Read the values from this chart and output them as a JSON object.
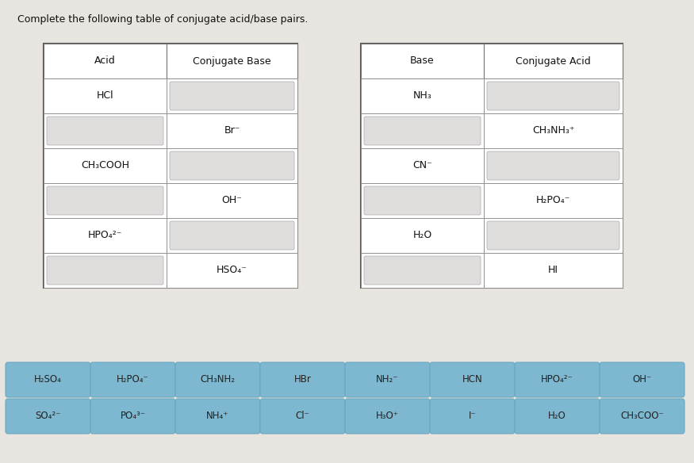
{
  "title": "Complete the following table of conjugate acid/base pairs.",
  "page_bg": "#e8e4df",
  "table1": {
    "headers": [
      "Acid",
      "Conjugate Base"
    ],
    "rows": [
      [
        "HCl",
        ""
      ],
      [
        "",
        "Br⁻"
      ],
      [
        "CH₃COOH",
        ""
      ],
      [
        "",
        "OH⁻"
      ],
      [
        "HPO₄²⁻",
        ""
      ],
      [
        "",
        "HSO₄⁻"
      ]
    ]
  },
  "table2": {
    "headers": [
      "Base",
      "Conjugate Acid"
    ],
    "rows": [
      [
        "NH₃",
        ""
      ],
      [
        "",
        "CH₃NH₃⁺"
      ],
      [
        "CN⁻",
        ""
      ],
      [
        "",
        "H₂PO₄⁻"
      ],
      [
        "H₂O",
        ""
      ],
      [
        "",
        "HI"
      ]
    ]
  },
  "answer_tiles_row1": [
    "H₂SO₄",
    "H₂PO₄⁻",
    "CH₃NH₂",
    "HBr",
    "NH₂⁻",
    "HCN",
    "HPO₄²⁻",
    "OH⁻"
  ],
  "answer_tiles_row2": [
    "SO₄²⁻",
    "PO₄³⁻",
    "NH₄⁺",
    "Cl⁻",
    "H₃O⁺",
    "I⁻",
    "H₂O",
    "CH₃COO⁻"
  ],
  "tile_color": "#7db8d0",
  "tile_border_color": "#6aa8c0",
  "answer_cell_color": "#dcdad8",
  "table_bg": "#ffffff",
  "text_color": "#222222",
  "border_color": "#666666",
  "inner_cell_color": "#e0dedd"
}
